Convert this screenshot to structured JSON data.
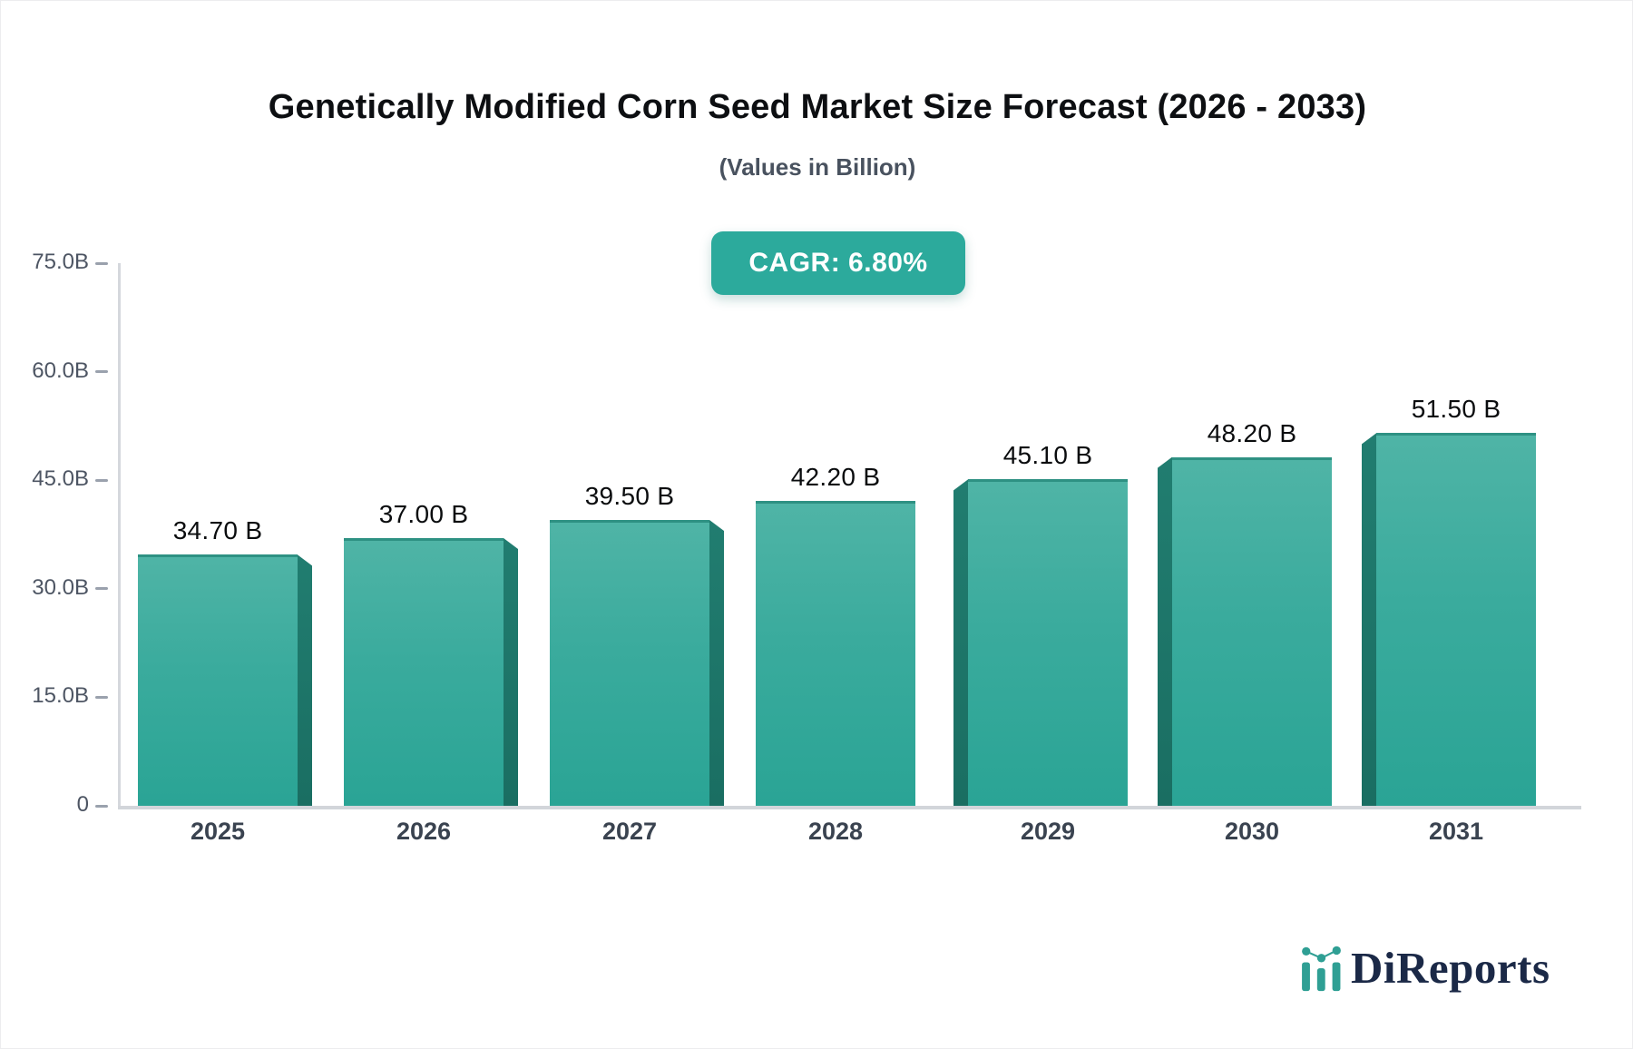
{
  "header": {
    "title": "Genetically Modified Corn Seed Market Size Forecast (2026 - 2033)",
    "subtitle": "(Values in Billion)",
    "cagr_badge": "CAGR: 6.80%"
  },
  "chart_data": {
    "type": "bar",
    "title": "Genetically Modified Corn Seed Market Size Forecast (2026 - 2033)",
    "subtitle": "(Values in Billion)",
    "cagr": "6.80%",
    "categories": [
      "2025",
      "2026",
      "2027",
      "2028",
      "2029",
      "2030",
      "2031"
    ],
    "values": [
      34.7,
      37.0,
      39.5,
      42.2,
      45.1,
      48.2,
      51.5
    ],
    "value_labels": [
      "34.70 B",
      "37.00 B",
      "39.50 B",
      "42.20 B",
      "45.10 B",
      "48.20 B",
      "51.50 B"
    ],
    "unit": "Billion",
    "xlabel": "",
    "ylabel": "",
    "ylim": [
      0,
      75
    ],
    "yticks": {
      "labels": [
        "75.0B",
        "60.0B",
        "45.0B",
        "30.0B",
        "15.0B",
        "0"
      ],
      "values": [
        75,
        60,
        45,
        30,
        15,
        0
      ]
    },
    "grid": false,
    "legend": "none",
    "style": "3d-perspective-bars",
    "colors": {
      "bar_face_top": "#4fb4a6",
      "bar_face_bottom": "#2aa495",
      "bar_top_edge": "#2e9183",
      "bar_side": "#1f7c6f",
      "badge_background": "#2caa9c",
      "axis_line": "#d3d6db",
      "tick": "#9aa1ad",
      "y_label_text": "#4d5563",
      "x_label_text": "#3a4350",
      "value_label_text": "#0a0c0e",
      "title_text": "#0d0f12",
      "subtitle_text": "#49525f"
    }
  },
  "footer": {
    "brand": "DiReports",
    "brand_color": "#1b2947",
    "icon_color": "#2f9f94"
  }
}
